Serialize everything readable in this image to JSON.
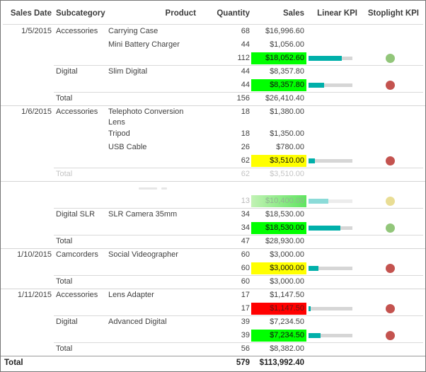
{
  "chart_data": {
    "type": "table",
    "columns": [
      "Sales Date",
      "Subcategory",
      "Product",
      "Quantity",
      "Sales",
      "Linear KPI",
      "Stoplight KPI"
    ],
    "rows": [
      {
        "t": "detail",
        "date": "1/5/2015",
        "sub": "Accessories",
        "prod": "Carrying Case",
        "qty": "68",
        "sales": "$16,996.60"
      },
      {
        "t": "detail",
        "prod": "Mini Battery Charger",
        "qty": "44",
        "sales": "$1,056.00"
      },
      {
        "t": "kpi",
        "qty": "112",
        "sales": "$18,052.60",
        "bg": "green",
        "bar": 75,
        "dot": "green"
      },
      {
        "t": "detail",
        "sub": "Digital",
        "prod": "Slim Digital",
        "qty": "44",
        "sales": "$8,357.80",
        "rule": "sub"
      },
      {
        "t": "kpi",
        "qty": "44",
        "sales": "$8,357.80",
        "bg": "green",
        "bar": 36,
        "dot": "red"
      },
      {
        "t": "total",
        "label": "Total",
        "qty": "156",
        "sales": "$26,410.40",
        "rule": "sub"
      },
      {
        "t": "detail",
        "date": "1/6/2015",
        "sub": "Accessories",
        "prod": "Telephoto Conversion Lens",
        "qty": "18",
        "sales": "$1,380.00",
        "rule": "full",
        "tall": true
      },
      {
        "t": "detail",
        "prod": "Tripod",
        "qty": "18",
        "sales": "$1,350.00"
      },
      {
        "t": "detail",
        "prod": "USB Cable",
        "qty": "26",
        "sales": "$780.00"
      },
      {
        "t": "kpi",
        "qty": "62",
        "sales": "$3,510.00",
        "bg": "yellow",
        "bar": 15,
        "dot": "red"
      },
      {
        "t": "total",
        "label": "Total",
        "qty": "62",
        "sales": "$3,510.00",
        "rule": "sub",
        "faded": true
      },
      {
        "t": "ghost",
        "rule": "full"
      },
      {
        "t": "kpi",
        "qty": "13",
        "sales": "$10,400.00",
        "bg": "fadedgreen",
        "bar": 45,
        "dot": "yellowFaded",
        "faded": true
      },
      {
        "t": "detail",
        "sub": "Digital SLR",
        "prod": "SLR Camera 35mm",
        "qty": "34",
        "sales": "$18,530.00",
        "rule": "sub"
      },
      {
        "t": "kpi",
        "qty": "34",
        "sales": "$18,530.00",
        "bg": "green",
        "bar": 72,
        "dot": "green"
      },
      {
        "t": "total",
        "label": "Total",
        "qty": "47",
        "sales": "$28,930.00",
        "rule": "sub"
      },
      {
        "t": "detail",
        "date": "1/10/2015",
        "sub": "Camcorders",
        "prod": "Social Videographer",
        "qty": "60",
        "sales": "$3,000.00",
        "rule": "full"
      },
      {
        "t": "kpi",
        "qty": "60",
        "sales": "$3,000.00",
        "bg": "yellow",
        "bar": 22,
        "dot": "red"
      },
      {
        "t": "total",
        "label": "Total",
        "qty": "60",
        "sales": "$3,000.00",
        "rule": "sub"
      },
      {
        "t": "detail",
        "date": "1/11/2015",
        "sub": "Accessories",
        "prod": "Lens Adapter",
        "qty": "17",
        "sales": "$1,147.50",
        "rule": "full"
      },
      {
        "t": "kpi",
        "qty": "17",
        "sales": "$1,147.50",
        "bg": "red",
        "bar": 5,
        "dot": "red"
      },
      {
        "t": "detail",
        "sub": "Digital",
        "prod": "Advanced Digital",
        "qty": "39",
        "sales": "$7,234.50",
        "rule": "sub"
      },
      {
        "t": "kpi",
        "qty": "39",
        "sales": "$7,234.50",
        "bg": "green",
        "bar": 28,
        "dot": "red"
      },
      {
        "t": "total",
        "label": "Total",
        "qty": "56",
        "sales": "$8,382.00",
        "rule": "sub"
      },
      {
        "t": "grand",
        "label": "Total",
        "qty": "579",
        "sales": "$113,992.40",
        "rule": "grand"
      }
    ],
    "legend": "Linear KPI = teal progress bar vs gray track; Stoplight KPI = colored dot"
  },
  "colors": {
    "cell_green": "#00FF00",
    "cell_yellow": "#FFFF00",
    "cell_red": "#FF0000",
    "cell_red_text": "#641414",
    "cell_faded_green_start": "#C2F2B5",
    "cell_faded_green_end": "#5FE55F",
    "cell_faded_green_text": "#93B493",
    "kpi_bar_fill": "#00B0AA",
    "kpi_bar_track": "#D6D6D6",
    "dot_green": "#92C67A",
    "dot_red": "#C4534F",
    "dot_yellowFaded": "#E9DD94"
  }
}
